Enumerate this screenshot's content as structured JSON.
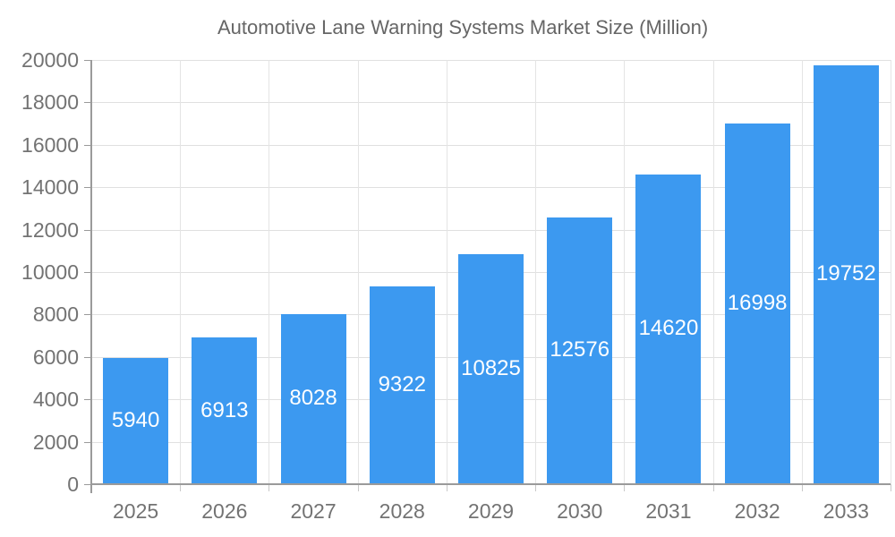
{
  "chart_data": {
    "type": "bar",
    "title": "Automotive Lane Warning Systems Market Size (Million)",
    "categories": [
      "2025",
      "2026",
      "2027",
      "2028",
      "2029",
      "2030",
      "2031",
      "2032",
      "2033"
    ],
    "values": [
      5940,
      6913,
      8028,
      9322,
      10825,
      12576,
      14620,
      16998,
      19752
    ],
    "xlabel": "",
    "ylabel": "",
    "ylim": [
      0,
      20000
    ],
    "ytick_interval": 2000,
    "yticks": [
      0,
      2000,
      4000,
      6000,
      8000,
      10000,
      12000,
      14000,
      16000,
      18000,
      20000
    ],
    "grid": true,
    "legend_position": "top-center",
    "colors": {
      "bar": "#3c99f0",
      "value_label": "#ffffff",
      "axis_label": "#737373",
      "legend_text": "#666666",
      "grid_line": "#e0e0e0",
      "axis_line": "#9a9a9a",
      "background": "#ffffff"
    }
  }
}
